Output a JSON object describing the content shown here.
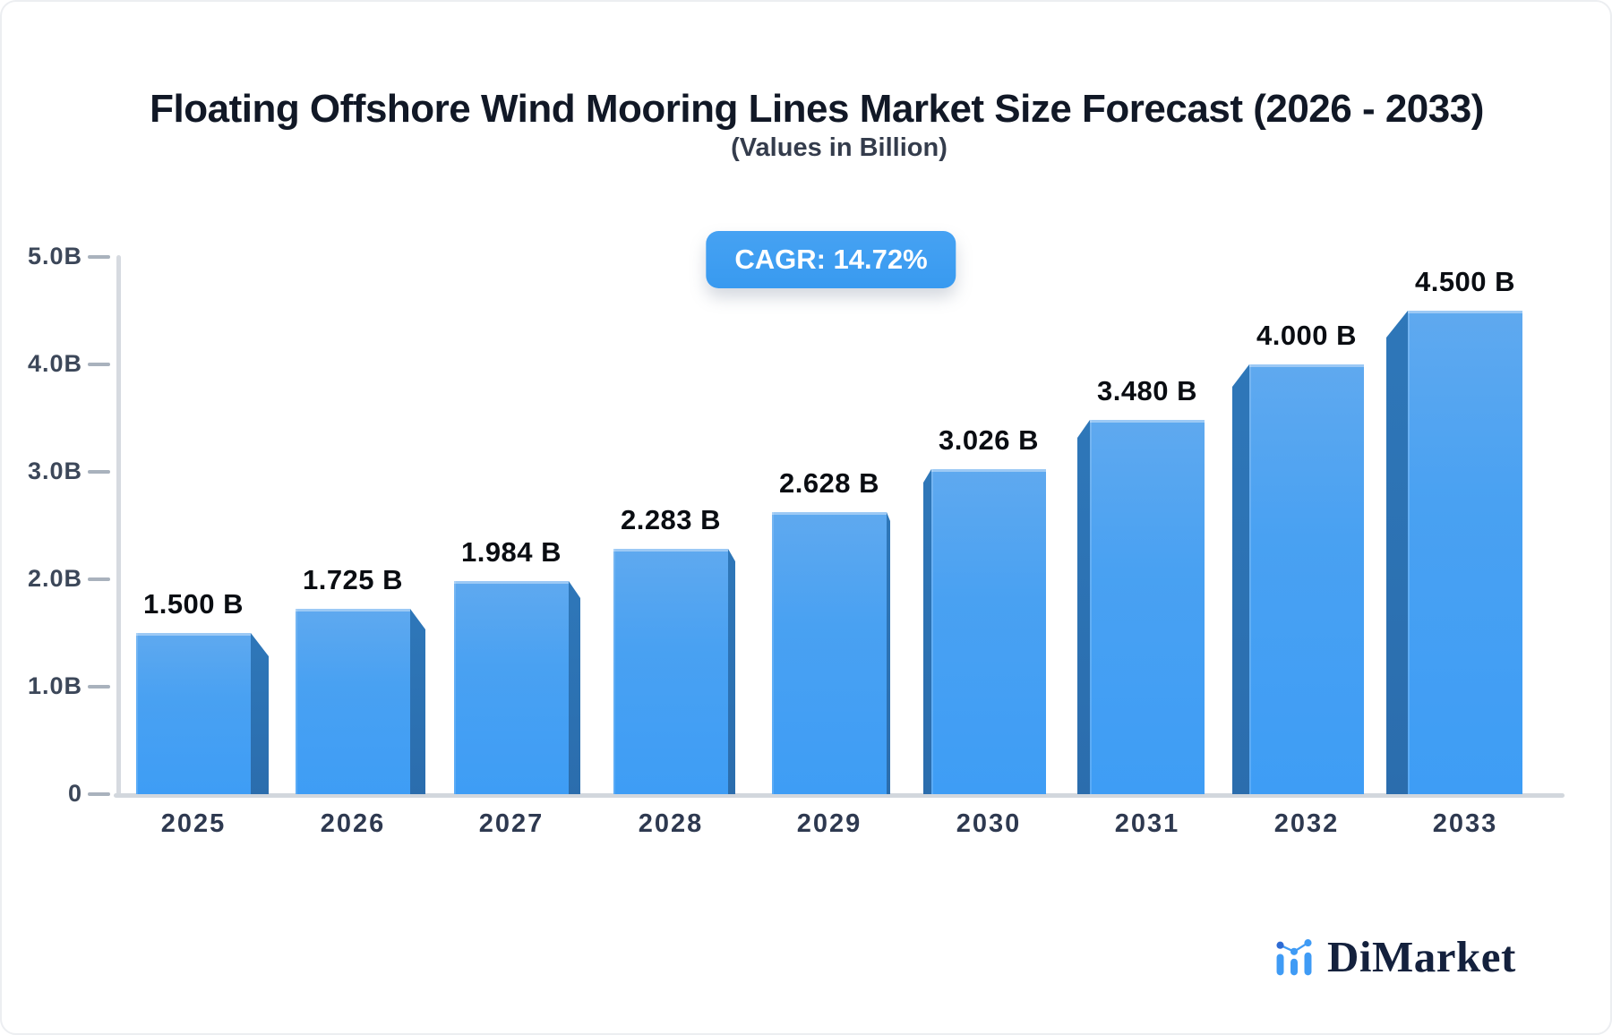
{
  "header": {
    "title": "Floating Offshore Wind Mooring Lines Market Size Forecast (2026 - 2033)",
    "subtitle": "(Values in Billion)"
  },
  "badge": {
    "label": "CAGR: 14.72%"
  },
  "chart_data": {
    "type": "bar",
    "title": "Floating Offshore Wind Mooring Lines Market Size Forecast (2026 - 2033)",
    "subtitle": "(Values in Billion)",
    "categories": [
      "2025",
      "2026",
      "2027",
      "2028",
      "2029",
      "2030",
      "2031",
      "2032",
      "2033"
    ],
    "values": [
      1.5,
      1.725,
      1.984,
      2.283,
      2.628,
      3.026,
      3.48,
      4.0,
      4.5
    ],
    "bar_labels": [
      "1.500 B",
      "1.725 B",
      "1.984 B",
      "2.283 B",
      "2.628 B",
      "3.026 B",
      "3.480 B",
      "4.000 B",
      "4.500 B"
    ],
    "cagr": "14.72%",
    "xlabel": "",
    "ylabel": "",
    "ylim": [
      0,
      5
    ],
    "yticks": [
      "0",
      "1.0B",
      "2.0B",
      "3.0B",
      "4.0B",
      "5.0B"
    ],
    "grid": false,
    "legend": null,
    "unit": "Billion",
    "bar_color": "#419ef3",
    "bar_side_color": "#2d74b6"
  },
  "branding": {
    "name": "DiMarket",
    "icon": "bar-chart-logo-icon",
    "accent_color": "#3f9bf5",
    "text_color": "#14213d"
  }
}
